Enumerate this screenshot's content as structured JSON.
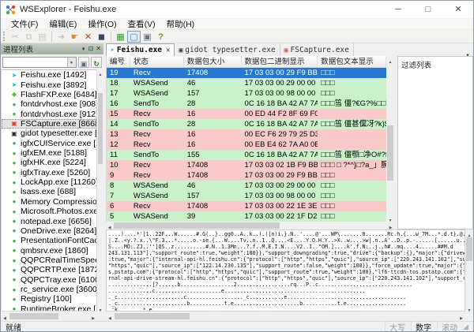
{
  "window": {
    "title": "WSExplorer - Feishu.exe",
    "controls": {
      "minimize": "─",
      "maximize": "□",
      "close": "✕"
    }
  },
  "menu": {
    "items": [
      {
        "label": "文件(F)"
      },
      {
        "label": "编辑(E)"
      },
      {
        "label": "操作(O)"
      },
      {
        "label": "查看(V)"
      },
      {
        "label": "帮助(H)"
      }
    ]
  },
  "toolbar": {
    "buttons": [
      {
        "name": "cut",
        "glyph": "✂",
        "color": "#a0a0a0",
        "enabled": false
      },
      {
        "name": "copy",
        "glyph": "⧉",
        "color": "#a0a0a0",
        "enabled": false
      },
      {
        "name": "paste",
        "glyph": "▤",
        "color": "#a0a0a0",
        "enabled": false
      },
      {
        "sep": true
      },
      {
        "name": "go-arrow",
        "glyph": "➜",
        "color": "#9aa79a",
        "enabled": false
      },
      {
        "name": "capture-hand",
        "glyph": "☛",
        "color": "#d98926",
        "enabled": true
      },
      {
        "name": "clear",
        "glyph": "✕",
        "color": "#c43a2e",
        "enabled": true
      },
      {
        "name": "save",
        "glyph": "◼",
        "color": "#3a4668",
        "enabled": true
      },
      {
        "sep": true
      },
      {
        "name": "process-list-toggle",
        "glyph": "▦",
        "color": "#2f9e2f",
        "enabled": true
      },
      {
        "name": "packet-view-toggle",
        "glyph": "▢",
        "color": "#4a87c8",
        "enabled": true,
        "pressed": true
      },
      {
        "name": "windows-cascade",
        "glyph": "▣",
        "color": "#6b7280",
        "enabled": true
      },
      {
        "name": "help",
        "glyph": "?",
        "color": "#8b8b30",
        "enabled": true,
        "bold": true
      }
    ]
  },
  "icons": {
    "feishu": {
      "glyph": "➤",
      "color": "#18b2e8"
    },
    "flashfxp": {
      "glyph": "◆",
      "color": "#5cc22e"
    },
    "fscapture": {
      "glyph": "▣",
      "color": "#e0432f"
    },
    "gidot": {
      "glyph": "▣",
      "color": "#2b2b2b"
    },
    "process": {
      "glyph": "●",
      "color": "#3fae49"
    }
  },
  "process_panel": {
    "title": "进程列表",
    "filter_value": "",
    "items": [
      {
        "label": "Feishu.exe [1492]",
        "icon": "feishu",
        "selected": false
      },
      {
        "label": "Feishu.exe [3892]",
        "icon": "feishu",
        "selected": false
      },
      {
        "label": "FlashFXP.exe [6484]",
        "icon": "flashfxp",
        "selected": false
      },
      {
        "label": "fontdrvhost.exe [908]",
        "icon": "process",
        "selected": false
      },
      {
        "label": "fontdrvhost.exe [912]",
        "icon": "process",
        "selected": false
      },
      {
        "label": "FSCapture.exe [8668]",
        "icon": "fscapture",
        "selected": true
      },
      {
        "label": "gidot typesetter.exe [38",
        "icon": "gidot",
        "selected": false
      },
      {
        "label": "igfxCUIService.exe [2540",
        "icon": "process",
        "selected": false
      },
      {
        "label": "igfxEM.exe [5188]",
        "icon": "process",
        "selected": false
      },
      {
        "label": "igfxHK.exe [5224]",
        "icon": "process",
        "selected": false
      },
      {
        "label": "igfxTray.exe [5260]",
        "icon": "process",
        "selected": false
      },
      {
        "label": "LockApp.exe [11260]",
        "icon": "process",
        "selected": false
      },
      {
        "label": "lsass.exe [688]",
        "icon": "process",
        "selected": false
      },
      {
        "label": "Memory Compression [2",
        "icon": "process",
        "selected": false
      },
      {
        "label": "Microsoft.Photos.exe [13",
        "icon": "process",
        "selected": false
      },
      {
        "label": "notepad.exe [6656]",
        "icon": "process",
        "selected": false
      },
      {
        "label": "OneDrive.exe [8264]",
        "icon": "process",
        "selected": false
      },
      {
        "label": "PresentationFontCache.e",
        "icon": "process",
        "selected": false
      },
      {
        "label": "qmbsrv.exe [1860]",
        "icon": "process",
        "selected": false
      },
      {
        "label": "QQPCRealTimeSpeedup",
        "icon": "process",
        "selected": false
      },
      {
        "label": "QQPCRTP.exe [1872]",
        "icon": "process",
        "selected": false
      },
      {
        "label": "QQPCTray.exe [6100]",
        "icon": "process",
        "selected": false
      },
      {
        "label": "rc_service.exe [3600]",
        "icon": "process",
        "selected": false
      },
      {
        "label": "Registry [100]",
        "icon": "process",
        "selected": false
      },
      {
        "label": "RuntimeBroker.exe [104",
        "icon": "process",
        "selected": false
      }
    ]
  },
  "tabs": [
    {
      "label": "Feishu.exe",
      "icon": "feishu",
      "active": true,
      "close": "✕"
    },
    {
      "label": "gidot typesetter.exe",
      "icon": "gidot",
      "active": false
    },
    {
      "label": "FSCapture.exe",
      "icon": "fscapture",
      "active": false
    }
  ],
  "table": {
    "columns": [
      "编号",
      "状态",
      "数据包大小",
      "数据包二进制显示",
      "数据包文本显示"
    ],
    "rows": [
      {
        "id": "19",
        "status": "Recv",
        "size": "17408",
        "hex": "17 03 03 00 29 F9 BB A6 03 2A...",
        "text": "□□□",
        "selected": true
      },
      {
        "id": "18",
        "status": "WSASend",
        "size": "46",
        "hex": "17 03 03 00 29 00 00 00 00 00...",
        "text": "□□□",
        "selected": false
      },
      {
        "id": "17",
        "status": "WSASend",
        "size": "157",
        "hex": "17 03 03 00 98 00 00 00 00 00...",
        "text": "□□□",
        "selected": false
      },
      {
        "id": "16",
        "status": "SendTo",
        "size": "28",
        "hex": "0C 16 18 BA 42 A7 7A 83 74 D...",
        "text": "□□□筜  僵?€G?%□□7",
        "selected": false
      },
      {
        "id": "15",
        "status": "Recv",
        "size": "16",
        "hex": "00 ED 44 F2 8F 69 F0 52 DD 08...",
        "text": "",
        "selected": false
      },
      {
        "id": "14",
        "status": "SendTo",
        "size": "28",
        "hex": "0C 16 18 BA 42 A7 7A 83 74 D...",
        "text": "□□□筜  僵甚儻冴?k)$",
        "selected": false
      },
      {
        "id": "13",
        "status": "Recv",
        "size": "16",
        "hex": "00 EC F6 29 79 25 D3 5D B0 0...",
        "text": "",
        "selected": false
      },
      {
        "id": "12",
        "status": "Recv",
        "size": "16",
        "hex": "00 EB E4 62 7A A0 0B D0 6B 1...",
        "text": "",
        "selected": false
      },
      {
        "id": "11",
        "status": "SendTo",
        "size": "155",
        "hex": "0C 16 18 BA 42 A7 7A 83 74 D...",
        "text": "□□□筜  僵颚□净O#?f",
        "selected": false
      },
      {
        "id": "10",
        "status": "Recv",
        "size": "17408",
        "hex": "17 03 03 02 1B F9 BB A6 03 2...",
        "text": "□□□ □  ?*^}□?a_」腕",
        "selected": false
      },
      {
        "id": "9",
        "status": "Recv",
        "size": "17408",
        "hex": "17 03 03 00 29 F9 BB A6 03 2A...",
        "text": "□□□",
        "selected": false
      },
      {
        "id": "8",
        "status": "WSASend",
        "size": "46",
        "hex": "17 03 03 00 29 00 00 00 00 00...",
        "text": "□□□",
        "selected": false
      },
      {
        "id": "7",
        "status": "WSASend",
        "size": "157",
        "hex": "17 03 03 00 98 00 00 00 00 00...",
        "text": "□□□",
        "selected": false
      },
      {
        "id": "6",
        "status": "Recv",
        "size": "17408",
        "hex": "17 03 03 00 22 1E 3E D2 1A F7...",
        "text": "□□□",
        "selected": false
      },
      {
        "id": "5",
        "status": "WSASend",
        "size": "39",
        "hex": "17 03 03 00 22 1F D2 CD CF 2...",
        "text": "□□□",
        "selected": false
      }
    ]
  },
  "filter_panel": {
    "title": "过滤列表"
  },
  "dump": {
    "lines": [
      "....)....*']1..22F...W......#.G(..}..gg0..A..k..).([n)i.}.N..'....@'...WP\\.......0.......Rc.h.{...w_7M...*.d.t}.@..N",
      "|.Z..<y.?.x..\\\"F.3...*.....o.-se.{...W....Tv..n..1..Q....<E....Y.O.H.Y..>X..w....>w|.n..A'..D..p.-......[......u..D/",
      "S....MO:.ZJ..'']QS..z..........#.N..1.3Mn...?.f..M.E.I.N....V2..I..\"OM.]....k'.f.N:..j..h#..mq....4......##M.d",
      "243.131.113\"],\"support_route\":true,\"weight\":100}},\"support_downgrading\":true,\"drive\":{\"backup\":{},\"major\":{\"driveweb.",
      ":true,\"major\":{\"internal-api-hl.feishu.cn\":{\"protocol\":[\"http\",\"https\",\"quic\"],\"source_ip\":[\"220.243.141.102\"],\"suppor",
      "\"https\",\"quic\"],\"source_ip\":[\"122.14.230.135\"],\"support_route\":false,\"weight\":100}},\"force_update\":true,\"major\":{\"open",
      "s.pstatp.com\":{\"protocol\":[\"http\",\"https\",\"quic\"],\"support_route\":true,\"weight\":100},\"lf6-ttcdn-tos.pstatp.com\":{\"prot",
      "rnal-api-drive-stream-hl.feishu.cn\":{\"protocol\":[\"http\",\"https\",\"quic\"],\"source_ip\":[\"220.243.141.102\"],\"support_route",
      "..............[?......b.................2.................rq...P..c..............................",
      "..............c.....................e.............................................",
      "._c.....................c.................._c...........e......................................",
      "._c......................b...........t.e.....................b...........t.e...................",
      ".'k........*.e.................................................................."
    ]
  },
  "status": {
    "left": "就绪",
    "indicators": [
      {
        "label": "大写",
        "active": false
      },
      {
        "label": "数字",
        "active": true
      },
      {
        "label": "滚动",
        "active": false
      }
    ]
  }
}
